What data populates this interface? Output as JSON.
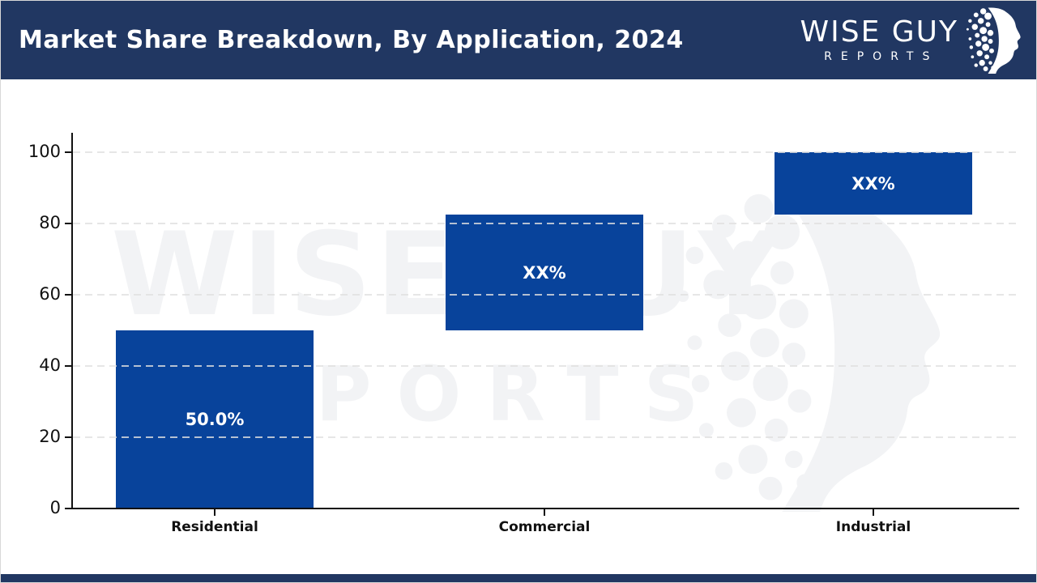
{
  "header": {
    "title": "Market Share Breakdown, By Application, 2024",
    "logo": {
      "line1": "WISE GUY",
      "line2": "REPORTS"
    }
  },
  "watermark": {
    "line1": "WISE GUY",
    "line2": "REPORTS"
  },
  "colors": {
    "header_navy": "#213762",
    "bar_blue": "#08439b",
    "grid_gray": "#e0e0e0",
    "axis_black": "#111111",
    "watermark_gray": "#f2f3f5",
    "label_white": "#ffffff"
  },
  "chart_data": {
    "type": "bar",
    "subtype": "waterfall-stacked-breakdown",
    "title": "Market Share Breakdown, By Application, 2024",
    "categories": [
      "Residential",
      "Commercial",
      "Industrial"
    ],
    "segments": [
      {
        "category": "Residential",
        "start": 0,
        "end": 50,
        "value_label": "50.0%"
      },
      {
        "category": "Commercial",
        "start": 50,
        "end": 82.5,
        "value_label": "XX%"
      },
      {
        "category": "Industrial",
        "start": 82.5,
        "end": 100,
        "value_label": "XX%"
      }
    ],
    "ylim": [
      0,
      100
    ],
    "yticks": [
      0,
      20,
      40,
      60,
      80,
      100
    ],
    "xlabel": "",
    "ylabel": "",
    "grid": "horizontal-dashed",
    "legend": "none",
    "bar_color": "#08439b"
  }
}
